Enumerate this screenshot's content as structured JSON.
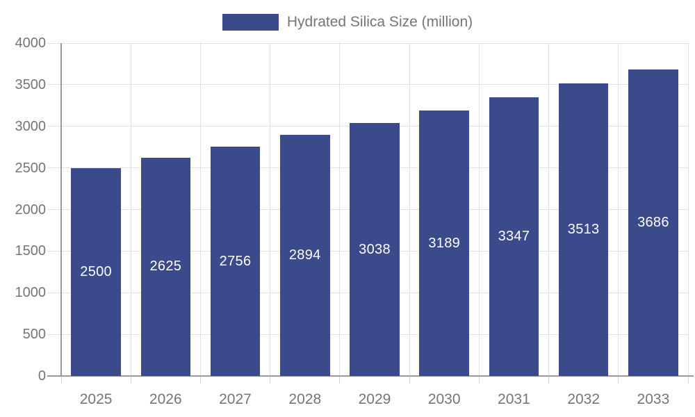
{
  "chart_data": {
    "type": "bar",
    "title": "Hydrated Silica Size (million)",
    "legend": {
      "position": "top",
      "entries": [
        "Hydrated Silica Size (million)"
      ]
    },
    "categories": [
      "2025",
      "2026",
      "2027",
      "2028",
      "2029",
      "2030",
      "2031",
      "2032",
      "2033"
    ],
    "series": [
      {
        "name": "Hydrated Silica Size (million)",
        "values": [
          2500,
          2625,
          2756,
          2894,
          3038,
          3189,
          3347,
          3513,
          3686
        ]
      }
    ],
    "bar_value_labels": [
      "2500",
      "2625",
      "2756",
      "2894",
      "3038",
      "3189",
      "3347",
      "3513",
      "3686"
    ],
    "xlabel": "",
    "ylabel": "",
    "ylim": [
      0,
      4000
    ],
    "ytick_labels": [
      "0",
      "500",
      "1000",
      "1500",
      "2000",
      "2500",
      "3000",
      "3500",
      "4000"
    ],
    "grid": "horizontal and vertical light gray gridlines",
    "value_label_position": "centered inside bars, white text"
  },
  "style": {
    "bar_color": "#3a4a8b",
    "bar_label_color": "#ffffff",
    "text_color": "#757575",
    "grid_color": "#e1e1e1",
    "tick_color": "#d4d4d4",
    "axis_line_color": "#9a9a9a",
    "background_color": "#ffffff"
  }
}
